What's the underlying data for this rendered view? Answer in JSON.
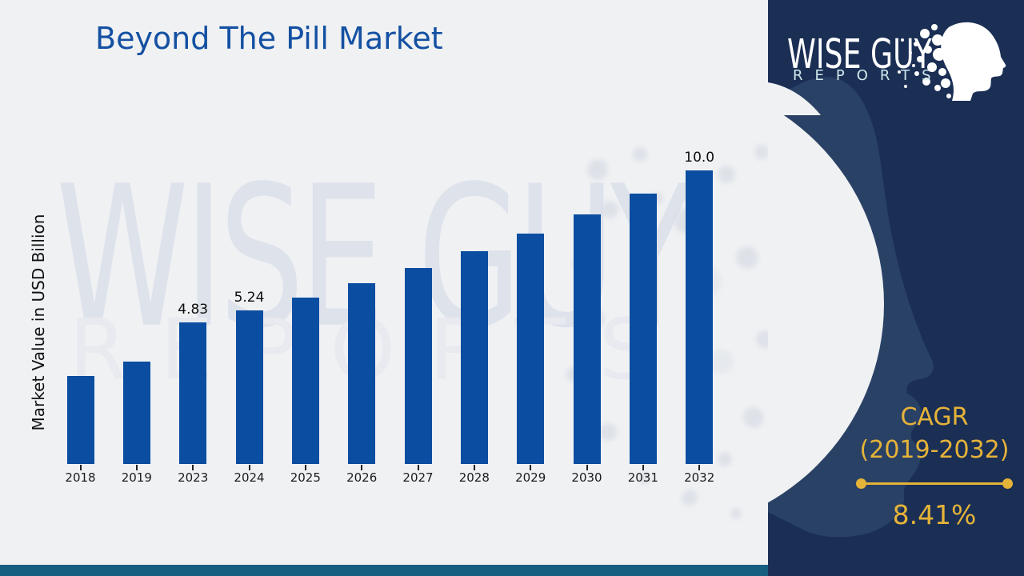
{
  "page": {
    "background": "#EFF1F3",
    "panel_color": "#1B2F55",
    "bottom_bar_color": "#175F80",
    "accent_gold": "#E5B338"
  },
  "header": {
    "title": "Beyond The Pill Market",
    "title_color": "#1450A2"
  },
  "brand": {
    "line1": "WISE GUY",
    "line2": "REPORTS"
  },
  "watermark": {
    "line1": "WISE GUY",
    "line2": "REPORTS"
  },
  "chart_data": {
    "type": "bar",
    "title": "Beyond The Pill Market",
    "ylabel": "Market Value in USD Billion",
    "xlabel": "",
    "categories": [
      "2018",
      "2019",
      "2023",
      "2024",
      "2025",
      "2026",
      "2027",
      "2028",
      "2029",
      "2030",
      "2031",
      "2032"
    ],
    "values": [
      3.0,
      3.5,
      4.83,
      5.24,
      5.68,
      6.16,
      6.68,
      7.24,
      7.85,
      8.51,
      9.22,
      10.0
    ],
    "shown_labels": [
      "",
      "",
      "4.83",
      "5.24",
      "",
      "",
      "",
      "",
      "",
      "",
      "",
      "10.0"
    ],
    "bar_color": "#0B4DA1",
    "ylim": [
      0,
      10.8
    ],
    "grid": false,
    "legend": false
  },
  "cagr": {
    "line1": "CAGR",
    "line2": "(2019-2032)",
    "value": "8.41%",
    "color": "#E5B338"
  }
}
